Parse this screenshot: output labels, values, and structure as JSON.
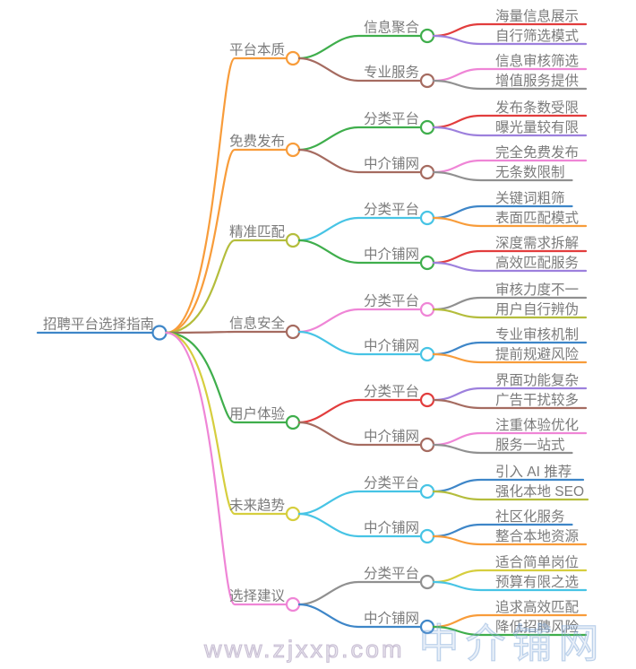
{
  "watermark": {
    "latin": "www.zjxxp.com",
    "cjk": "中介铺网"
  },
  "palette": {
    "blue": "#3e86c8",
    "orange": "#f89c3a",
    "green": "#3fae4c",
    "brown": "#a56b60",
    "olive": "#b4bd3c",
    "yellow": "#d6ce3e",
    "pink": "#ef85d6",
    "cyan": "#47c4e5",
    "red": "#e23d3d",
    "purple": "#9d80dd",
    "gray": "#909090",
    "text": "#7b7b7b"
  },
  "mindmap": {
    "root": {
      "label": "招聘平台选择指南",
      "color": "blue"
    },
    "branches": [
      {
        "label": "平台本质",
        "color": "orange",
        "children": [
          {
            "label": "信息聚合",
            "color": "green",
            "leaves": [
              {
                "label": "海量信息展示",
                "color": "red"
              },
              {
                "label": "自行筛选模式",
                "color": "purple"
              }
            ]
          },
          {
            "label": "专业服务",
            "color": "brown",
            "leaves": [
              {
                "label": "信息审核筛选",
                "color": "pink"
              },
              {
                "label": "增值服务提供",
                "color": "gray"
              }
            ]
          }
        ]
      },
      {
        "label": "免费发布",
        "color": "orange",
        "children": [
          {
            "label": "分类平台",
            "color": "green",
            "leaves": [
              {
                "label": "发布条数受限",
                "color": "red"
              },
              {
                "label": "曝光量较有限",
                "color": "purple"
              }
            ]
          },
          {
            "label": "中介铺网",
            "color": "brown",
            "leaves": [
              {
                "label": "完全免费发布",
                "color": "pink"
              },
              {
                "label": "无条数限制",
                "color": "gray"
              }
            ]
          }
        ]
      },
      {
        "label": "精准匹配",
        "color": "olive",
        "children": [
          {
            "label": "分类平台",
            "color": "cyan",
            "leaves": [
              {
                "label": "关键词粗筛",
                "color": "blue"
              },
              {
                "label": "表面匹配模式",
                "color": "orange"
              }
            ]
          },
          {
            "label": "中介铺网",
            "color": "green",
            "leaves": [
              {
                "label": "深度需求拆解",
                "color": "red"
              },
              {
                "label": "高效匹配服务",
                "color": "purple"
              }
            ]
          }
        ]
      },
      {
        "label": "信息安全",
        "color": "brown",
        "children": [
          {
            "label": "分类平台",
            "color": "pink",
            "leaves": [
              {
                "label": "审核力度不一",
                "color": "gray"
              },
              {
                "label": "用户自行辨伪",
                "color": "olive"
              }
            ]
          },
          {
            "label": "中介铺网",
            "color": "cyan",
            "leaves": [
              {
                "label": "专业审核机制",
                "color": "blue"
              },
              {
                "label": "提前规避风险",
                "color": "orange"
              }
            ]
          }
        ]
      },
      {
        "label": "用户体验",
        "color": "green",
        "children": [
          {
            "label": "分类平台",
            "color": "red",
            "leaves": [
              {
                "label": "界面功能复杂",
                "color": "purple"
              },
              {
                "label": "广告干扰较多",
                "color": "brown"
              }
            ]
          },
          {
            "label": "中介铺网",
            "color": "brown",
            "leaves": [
              {
                "label": "注重体验优化",
                "color": "pink"
              },
              {
                "label": "服务一站式",
                "color": "gray"
              }
            ]
          }
        ]
      },
      {
        "label": "未来趋势",
        "color": "yellow",
        "children": [
          {
            "label": "分类平台",
            "color": "cyan",
            "leaves": [
              {
                "label": "引入 AI 推荐",
                "color": "blue"
              },
              {
                "label": "强化本地 SEO",
                "color": "olive"
              }
            ]
          },
          {
            "label": "中介铺网",
            "color": "cyan",
            "leaves": [
              {
                "label": "社区化服务",
                "color": "blue"
              },
              {
                "label": "整合本地资源",
                "color": "orange"
              }
            ]
          }
        ]
      },
      {
        "label": "选择建议",
        "color": "pink",
        "children": [
          {
            "label": "分类平台",
            "color": "gray",
            "leaves": [
              {
                "label": "适合简单岗位",
                "color": "yellow"
              },
              {
                "label": "预算有限之选",
                "color": "cyan"
              }
            ]
          },
          {
            "label": "中介铺网",
            "color": "blue",
            "leaves": [
              {
                "label": "追求高效匹配",
                "color": "orange"
              },
              {
                "label": "降低招聘风险",
                "color": "green"
              }
            ]
          }
        ]
      }
    ]
  }
}
